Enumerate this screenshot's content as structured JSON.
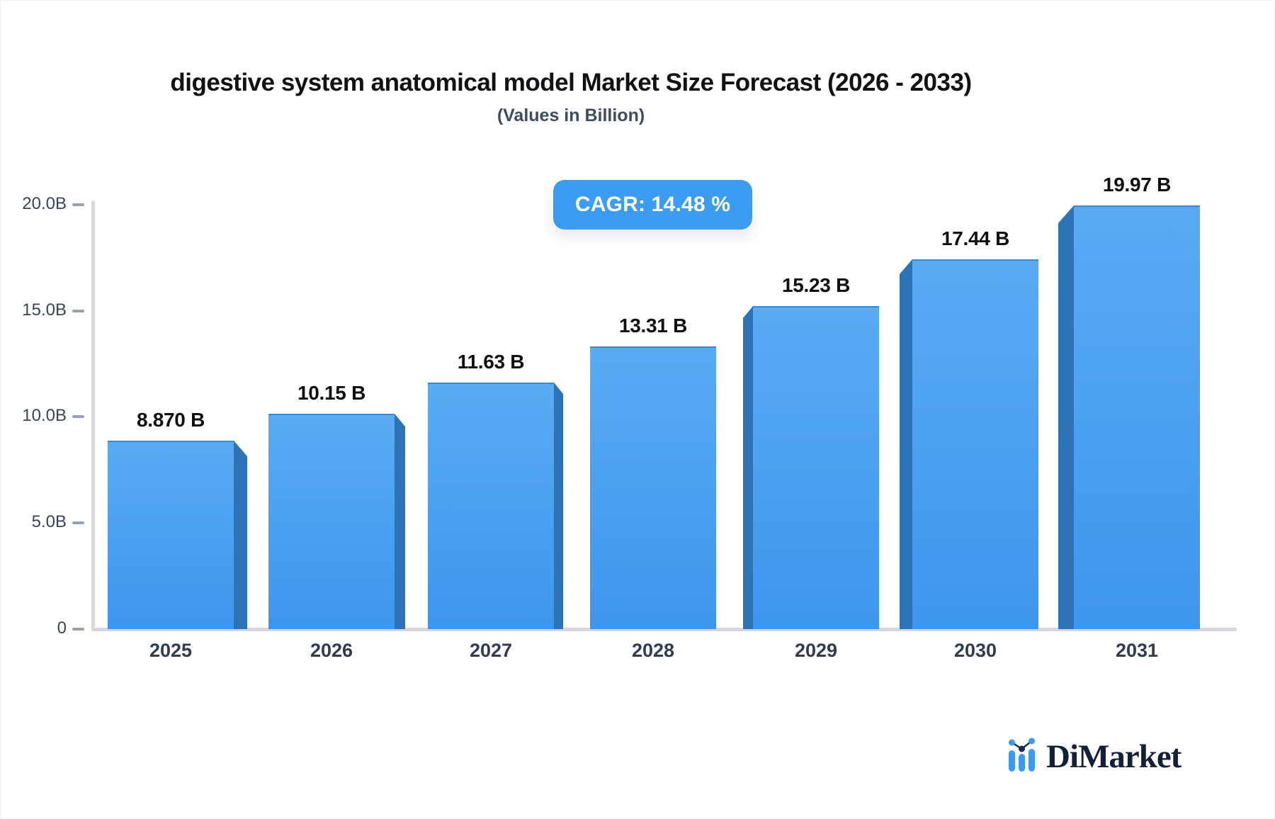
{
  "title": "digestive system anatomical model Market Size Forecast (2026 - 2033)",
  "subtitle": "(Values in Billion)",
  "badge": {
    "label": "CAGR: 14.48 %"
  },
  "logo": {
    "name": "DiMarket"
  },
  "colors": {
    "bar_top": "#58abf3",
    "bar_bottom": "#3e96ed",
    "bar_side": "#2d73b6",
    "badge_bg": "#3b9cf1",
    "logo_blue": "#3b9af0",
    "logo_navy": "#1b2b4a"
  },
  "chart_data": {
    "type": "bar",
    "title": "digestive system anatomical model Market Size Forecast (2026 - 2033)",
    "subtitle": "(Values in Billion)",
    "categories": [
      "2025",
      "2026",
      "2027",
      "2028",
      "2029",
      "2030",
      "2031"
    ],
    "values": [
      8.87,
      10.15,
      11.63,
      13.31,
      15.23,
      17.44,
      19.97
    ],
    "value_labels": [
      "8.870 B",
      "10.15 B",
      "11.63 B",
      "13.31 B",
      "15.23 B",
      "17.44 B",
      "19.97 B"
    ],
    "ylabel": "",
    "xlabel": "",
    "ylim": [
      0,
      20
    ],
    "yticks": [
      {
        "label": "20.0B",
        "value": 20
      },
      {
        "label": "15.0B",
        "value": 15
      },
      {
        "label": "10.0B",
        "value": 10
      },
      {
        "label": "5.0B",
        "value": 5
      },
      {
        "label": "0",
        "value": 0
      }
    ],
    "grid": false,
    "legend": false,
    "annotation": "CAGR: 14.48 %"
  }
}
